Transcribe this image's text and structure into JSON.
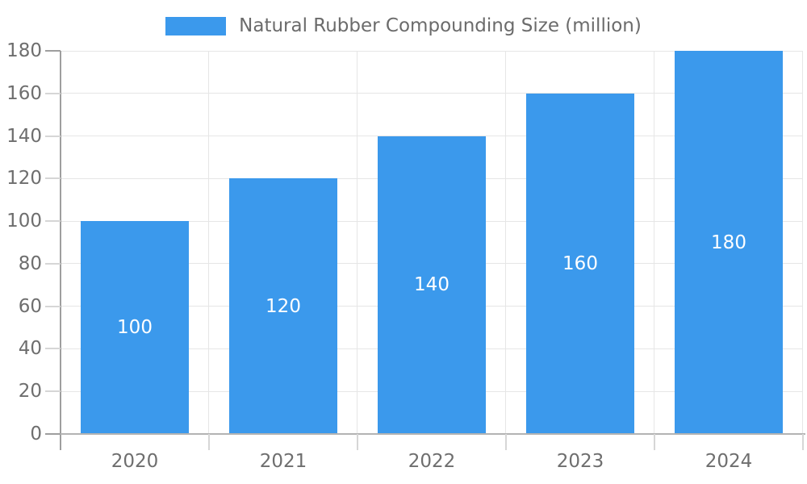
{
  "legend": {
    "label": "Natural Rubber Compounding Size (million)"
  },
  "colors": {
    "background": "#FFFFFF",
    "bar": "#3B99EC",
    "bar_label_text": "#FFFFFF",
    "axis_text": "#6E6E6E",
    "legend_text": "#6B6B6B",
    "grid": "#E6E6E6",
    "axis_line": "#9E9E9E",
    "baseline": "#B3B3B3",
    "tick": "#D6D6D6"
  },
  "chart_data": {
    "type": "bar",
    "title": "",
    "legend_label": "Natural Rubber Compounding Size (million)",
    "series": [
      {
        "name": "Natural Rubber Compounding Size (million)",
        "values": [
          100,
          120,
          140,
          160,
          180
        ]
      }
    ],
    "categories": [
      "2020",
      "2021",
      "2022",
      "2023",
      "2024"
    ],
    "values": [
      100,
      120,
      140,
      160,
      180
    ],
    "bar_value_labels": [
      "100",
      "120",
      "140",
      "160",
      "180"
    ],
    "xlabel": "",
    "ylabel": "",
    "ylim": [
      0,
      180
    ],
    "ytick_step": 20,
    "y_ticks": [
      0,
      20,
      40,
      60,
      80,
      100,
      120,
      140,
      160,
      180
    ],
    "grid": true,
    "legend_position": "top-center",
    "bar_labels_inside": true
  }
}
